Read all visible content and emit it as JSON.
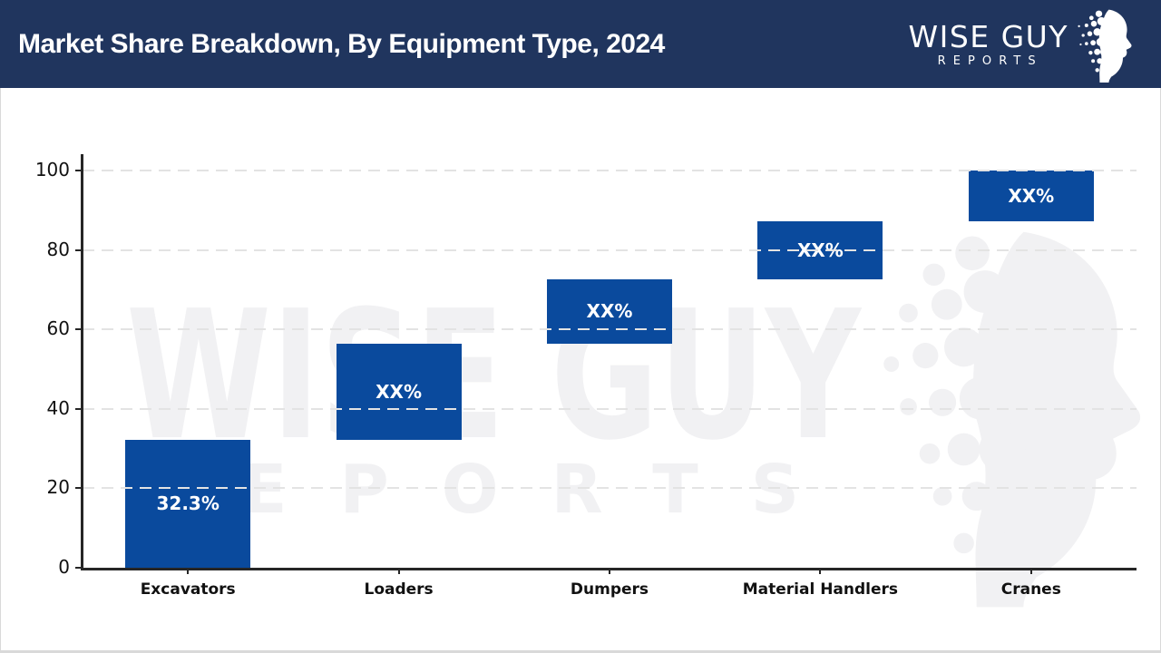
{
  "header": {
    "title": "Market Share Breakdown, By Equipment Type, 2024",
    "logo": {
      "line1": "WISE GUY",
      "line2": "REPORTS"
    }
  },
  "watermark": {
    "line1": "WISE GUY",
    "line2": "REPORTS"
  },
  "colors": {
    "header_bg": "#20355e",
    "bar_blue": "#0a4a9d",
    "axis": "#262626",
    "grid": "#e3e3e3",
    "watermark_gray": "#f1f1f3",
    "bar_label": "#ffffff"
  },
  "chart_data": {
    "type": "bar",
    "subtype": "waterfall",
    "title": "Market Share Breakdown, By Equipment Type, 2024",
    "xlabel": "",
    "ylabel": "",
    "categories": [
      "Excavators",
      "Loaders",
      "Dumpers",
      "Material Handlers",
      "Cranes"
    ],
    "bars": [
      {
        "category": "Excavators",
        "start": 0,
        "end": 32.3,
        "value_label": "32.3%"
      },
      {
        "category": "Loaders",
        "start": 32.3,
        "end": 56.5,
        "value_label": "XX%"
      },
      {
        "category": "Dumpers",
        "start": 56.5,
        "end": 72.6,
        "value_label": "XX%"
      },
      {
        "category": "Material Handlers",
        "start": 72.6,
        "end": 87.3,
        "value_label": "XX%"
      },
      {
        "category": "Cranes",
        "start": 87.3,
        "end": 100,
        "value_label": "XX%"
      }
    ],
    "yticks": [
      0,
      20,
      40,
      60,
      80,
      100
    ],
    "ylim": [
      0,
      104
    ],
    "grid": "horizontal-dashed",
    "legend": "none"
  }
}
